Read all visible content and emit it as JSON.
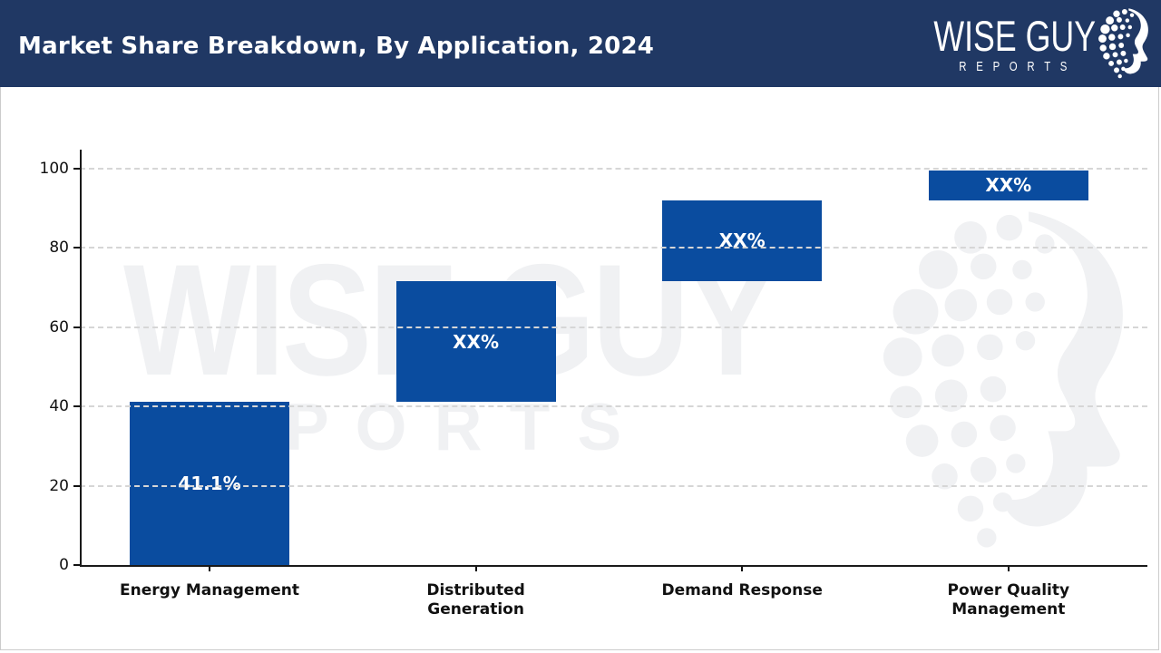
{
  "header": {
    "title": "Market Share Breakdown, By Application, 2024",
    "logo": {
      "name": "WISE GUY",
      "tagline": "R E P O R T S"
    }
  },
  "watermark": {
    "big_text": "WISE GUY",
    "spaced_text": "R E P O R T S"
  },
  "colors": {
    "header_bg": "#203864",
    "bar": "#0a4c9f",
    "grid": "#d6d6d6",
    "axis": "#1a1a1a",
    "watermark": "#f0f1f3",
    "bar_label": "#ffffff",
    "title_text": "#ffffff"
  },
  "chart_data": {
    "type": "bar",
    "variant": "waterfall",
    "title": "Market Share Breakdown, By Application, 2024",
    "categories": [
      "Energy Management",
      "Distributed Generation",
      "Demand Response",
      "Power Quality Management"
    ],
    "category_lines": [
      [
        "Energy Management"
      ],
      [
        "Distributed",
        "Generation"
      ],
      [
        "Demand Response"
      ],
      [
        "Power Quality",
        "Management"
      ]
    ],
    "segments": [
      {
        "category": "Energy Management",
        "start": 0,
        "end": 41.1,
        "label": "41.1%"
      },
      {
        "category": "Distributed Generation",
        "start": 41.1,
        "end": 71.6,
        "label": "XX%"
      },
      {
        "category": "Demand Response",
        "start": 71.6,
        "end": 92.1,
        "label": "XX%"
      },
      {
        "category": "Power Quality Management",
        "start": 92.1,
        "end": 99.5,
        "label": "XX%"
      }
    ],
    "yticks": [
      0,
      20,
      40,
      60,
      80,
      100
    ],
    "ylim": [
      0,
      104.5
    ],
    "xlabel": "",
    "ylabel": "",
    "grid": {
      "horizontal": true,
      "style": "dashed"
    },
    "legend": null
  }
}
